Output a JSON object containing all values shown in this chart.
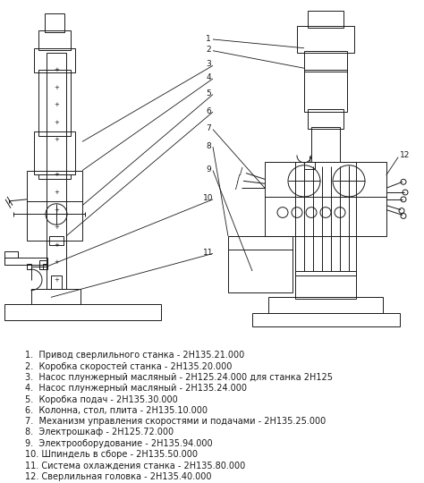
{
  "background_color": "#ffffff",
  "legend_items": [
    "1.  Привод сверлильного станка - 2Н135.21.000",
    "2.  Коробка скоростей станка - 2Н135.20.000",
    "3.  Насос плунжерный масляный - 2Н125.24.000 для станка 2Н125",
    "4.  Насос плунжерный масляный - 2Н135.24.000",
    "5.  Коробка подач - 2Н135.30.000",
    "6.  Колонна, стол, плита - 2Н135.10.000",
    "7.  Механизм управления скоростями и подачами - 2Н135.25.000",
    "8.  Электрошкаф - 2Н125.72.000",
    "9.  Электрооборудование - 2Н135.94.000",
    "10. Шпиндель в сборе - 2Н135.50.000",
    "11. Система охлаждения станка - 2Н135.80.000",
    "12. Сверлильная головка - 2Н135.40.000"
  ],
  "text_color": "#1a1a1a",
  "legend_fontsize": 7.0,
  "line_color": "#1a1a1a",
  "line_width": 0.7
}
